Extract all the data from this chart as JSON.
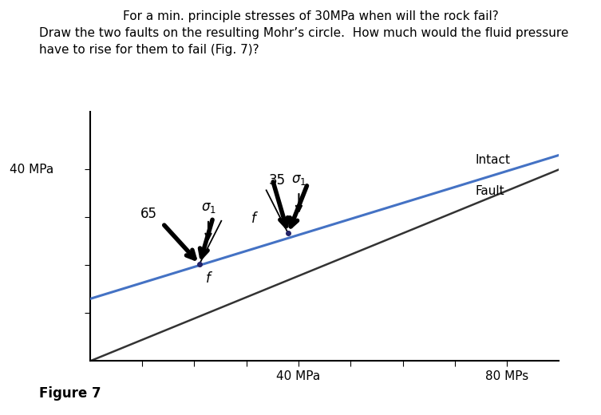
{
  "title_line1": "For a min. principle stresses of 30MPa when will the rock fail?",
  "title_line2": "Draw the two faults on the resulting Mohr’s circle.  How much would the fluid pressure",
  "title_line3": "have to rise for them to fail (Fig. 7)?",
  "fig_label": "Figure 7",
  "ylabel": "40 MPa",
  "xlabel_40": "40 MPa",
  "xlabel_80": "80 MPs",
  "intact_label": "Intact",
  "fault_label": "Fault",
  "blue_line_color": "#4472c4",
  "dark_line_color": "#333333",
  "background_color": "#ffffff",
  "xlim": [
    0,
    90
  ],
  "ylim": [
    0,
    52
  ],
  "blue_line": {
    "x0": 0,
    "y0": 13,
    "x1": 90,
    "y1": 43
  },
  "dark_line": {
    "x0": 0,
    "y0": 0,
    "x1": 90,
    "y1": 40
  },
  "f1x": 21,
  "f1y": 20.3,
  "f2x": 38,
  "f2y": 26.7,
  "font_size_title": 11,
  "font_size_label": 11,
  "font_size_tick": 11,
  "font_size_num": 12
}
